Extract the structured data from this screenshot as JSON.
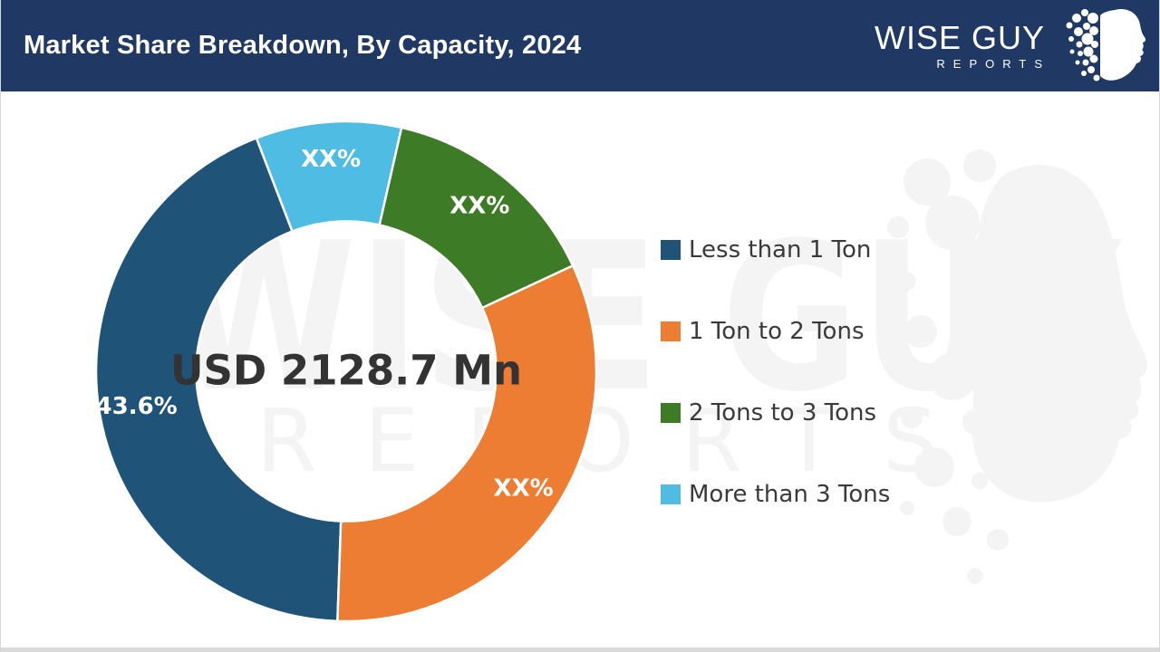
{
  "header": {
    "title": "Market Share Breakdown, By Capacity, 2024",
    "logo": {
      "line1": "WISE GUY",
      "line2": "REPORTS"
    }
  },
  "colors": {
    "header_bg": "#203864",
    "center_text": "#333333",
    "legend_text": "#3a3a3a",
    "slice_label_text": "#ffffff",
    "watermark": "#f4f4f5",
    "bottom_strip": "#d9d9d9"
  },
  "watermark": {
    "line1": "WISE GUY",
    "line2": "REPORTS"
  },
  "chart_data": {
    "type": "pie",
    "subtype": "donut",
    "title": "Market Share Breakdown, By Capacity, 2024",
    "center_label": "USD 2128.7 Mn",
    "start_angle_deg": 182,
    "clockwise": true,
    "inner_radius_ratio": 0.6,
    "label_radius_ratio": 0.85,
    "legend_position": "right",
    "segments": [
      {
        "name": "Less than 1 Ton",
        "value": 43.6,
        "display_label": "43.6%",
        "color": "#1f5378"
      },
      {
        "name": "More than 3 Tons",
        "value": 9.4,
        "display_label": "XX%",
        "color": "#4fbce3"
      },
      {
        "name": "2 Tons to 3 Tons",
        "value": 14.5,
        "display_label": "XX%",
        "color": "#3e7b26"
      },
      {
        "name": "1 Ton to 2 Tons",
        "value": 32.5,
        "display_label": "XX%",
        "color": "#ec7d33"
      }
    ],
    "legend": [
      {
        "label": "Less than 1 Ton",
        "color": "#1f5378"
      },
      {
        "label": "1 Ton to 2 Tons",
        "color": "#ec7d33"
      },
      {
        "label": "2 Tons to 3 Tons",
        "color": "#3e7b26"
      },
      {
        "label": "More than 3 Tons",
        "color": "#4fbce3"
      }
    ]
  }
}
